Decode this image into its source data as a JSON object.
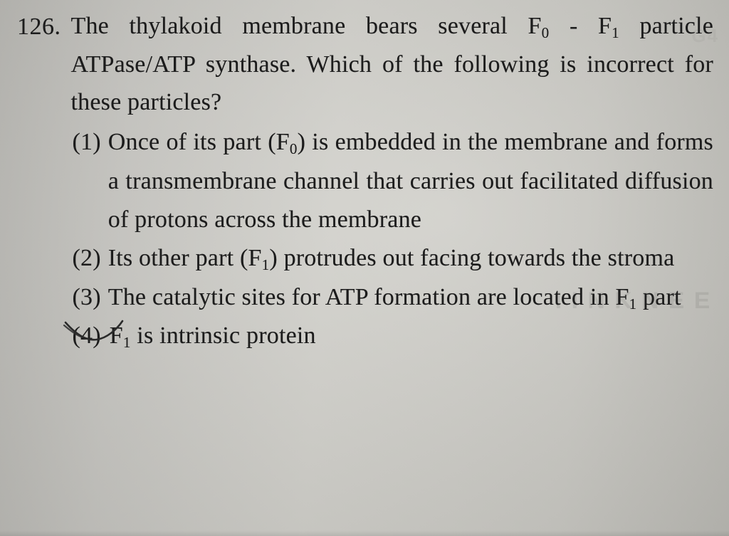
{
  "question": {
    "number": "126.",
    "stem_html": "The thylakoid membrane bears several F<sub>0</sub> - F<sub>1</sub> particle ATPase/ATP synthase. Which of the following is incorrect for these particles?",
    "options": [
      {
        "num": "(1)",
        "text_html": "Once of its part (F<sub>0</sub>) is embedded in the membrane and forms a transmembrane channel that carries out facilitated diffusion of protons across the membrane"
      },
      {
        "num": "(2)",
        "text_html": "Its other part (F<sub>1</sub>) protrudes out facing towards the stroma"
      },
      {
        "num": "(3)",
        "text_html": "The catalytic sites for ATP formation are located in F<sub>1</sub> part"
      },
      {
        "num": "(4)",
        "text_html": "F<sub>1</sub> is intrinsic protein"
      }
    ],
    "selected_index": 3
  },
  "watermark": {
    "text1": "I I N K  N E E",
    "text2": "G4"
  },
  "style": {
    "tick_color": "#2a2a2a",
    "text_color": "#1c1c1c"
  }
}
